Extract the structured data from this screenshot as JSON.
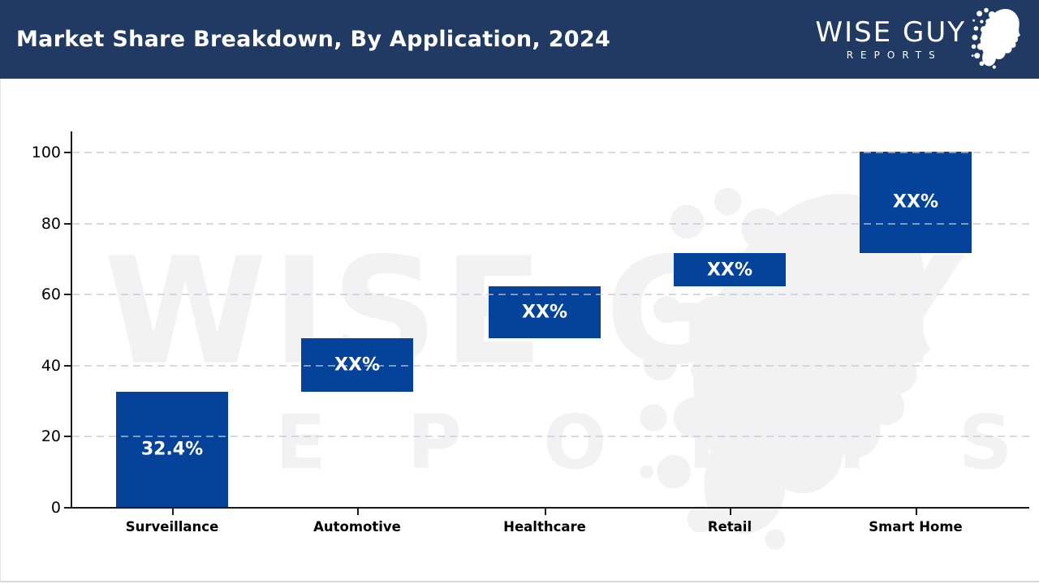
{
  "header": {
    "title": "Market Share Breakdown, By Application, 2024",
    "logo": {
      "line1": "WISE GUY",
      "line2": "REPORTS"
    }
  },
  "watermark": {
    "line1": "WISE GUY",
    "line2": "REPORTS"
  },
  "colors": {
    "header_bg": "#203A64",
    "bar": "#05439B",
    "title_text": "#FFFFFF",
    "axis": "#1A1A1A",
    "grid_dash": "#D9D9D9",
    "watermark": "#F2F2F2"
  },
  "chart_data": {
    "type": "bar",
    "subtype": "waterfall",
    "title": "Market Share Breakdown, By Application, 2024",
    "xlabel": "",
    "ylabel": "",
    "categories": [
      "Surveillance",
      "Automotive",
      "Healthcare",
      "Retail",
      "Smart Home"
    ],
    "series": [
      {
        "name": "Market Share (%)",
        "segments": [
          {
            "category": "Surveillance",
            "start": 0,
            "end": 32.4,
            "increment": 32.4,
            "label": "32.4%"
          },
          {
            "category": "Automotive",
            "start": 32.4,
            "end": 47.5,
            "increment": 15.1,
            "label": "XX%"
          },
          {
            "category": "Healthcare",
            "start": 47.5,
            "end": 62.0,
            "increment": 14.5,
            "label": "XX%"
          },
          {
            "category": "Retail",
            "start": 62.0,
            "end": 71.5,
            "increment": 9.5,
            "label": "XX%"
          },
          {
            "category": "Smart Home",
            "start": 71.5,
            "end": 100,
            "increment": 28.5,
            "label": "XX%"
          }
        ]
      }
    ],
    "ylim": [
      0,
      105
    ],
    "yticks": [
      0,
      20,
      40,
      60,
      80,
      100
    ],
    "grid": "horizontal-dashed",
    "legend": "none"
  }
}
